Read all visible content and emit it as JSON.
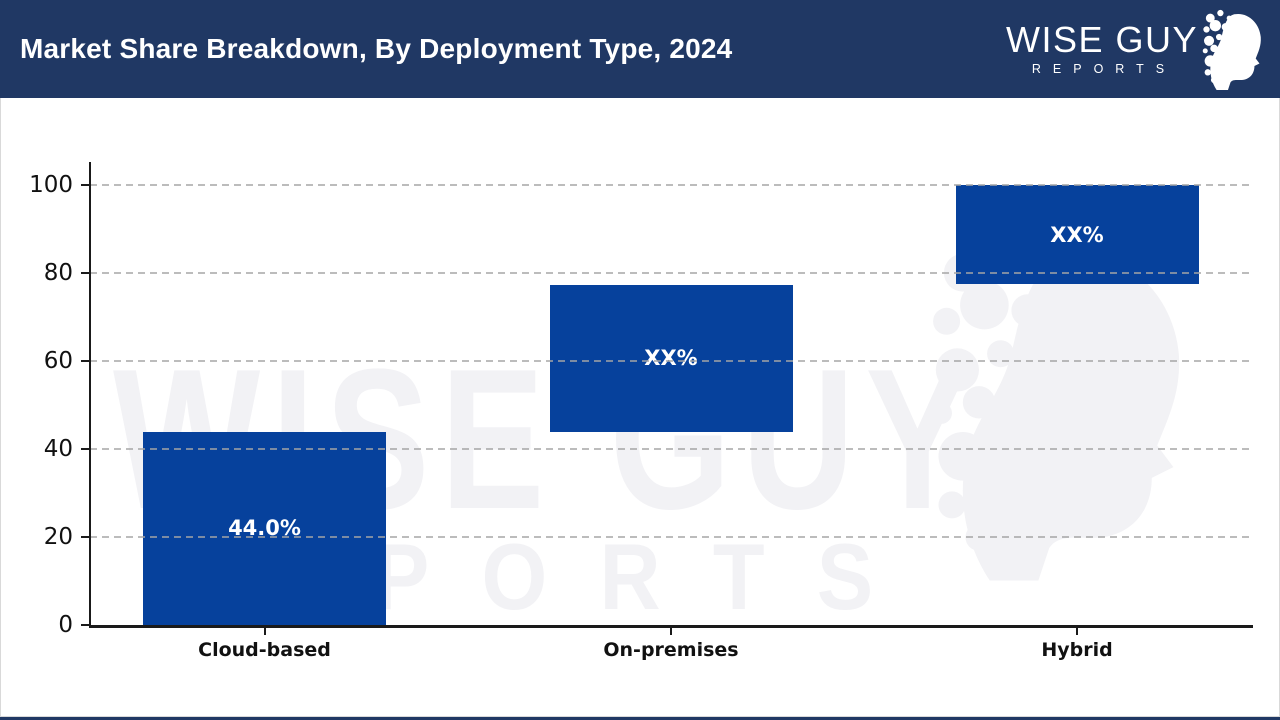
{
  "header": {
    "title": "Market Share Breakdown, By Deployment Type, 2024",
    "logo": {
      "brand": "WISE GUY",
      "sub": "REPORTS"
    }
  },
  "watermark": {
    "brand": "WISE GUY",
    "sub": "REPORTS"
  },
  "chart_data": {
    "type": "bar",
    "variant": "floating-waterfall-percent",
    "title": "Market Share Breakdown, By Deployment Type, 2024",
    "categories": [
      "Cloud-based",
      "On-premises",
      "Hybrid"
    ],
    "segments": [
      {
        "category": "Cloud-based",
        "from": 0,
        "to": 44,
        "label": "44.0%"
      },
      {
        "category": "On-premises",
        "from": 44,
        "to": 77.4,
        "label": "XX%"
      },
      {
        "category": "Hybrid",
        "from": 77.5,
        "to": 100,
        "label": "XX%"
      }
    ],
    "ylim": [
      0,
      100
    ],
    "yticks": [
      0,
      20,
      40,
      60,
      80,
      100
    ],
    "xlabel": "",
    "ylabel": "",
    "bar_color": "#06419c",
    "grid": {
      "axis": "y",
      "style": "dashed",
      "color": "#a5a5a5"
    },
    "legend": null,
    "colors": {
      "header_bg": "#203864",
      "axis": "#1a1a1a",
      "watermark": "#f2f2f5"
    }
  }
}
